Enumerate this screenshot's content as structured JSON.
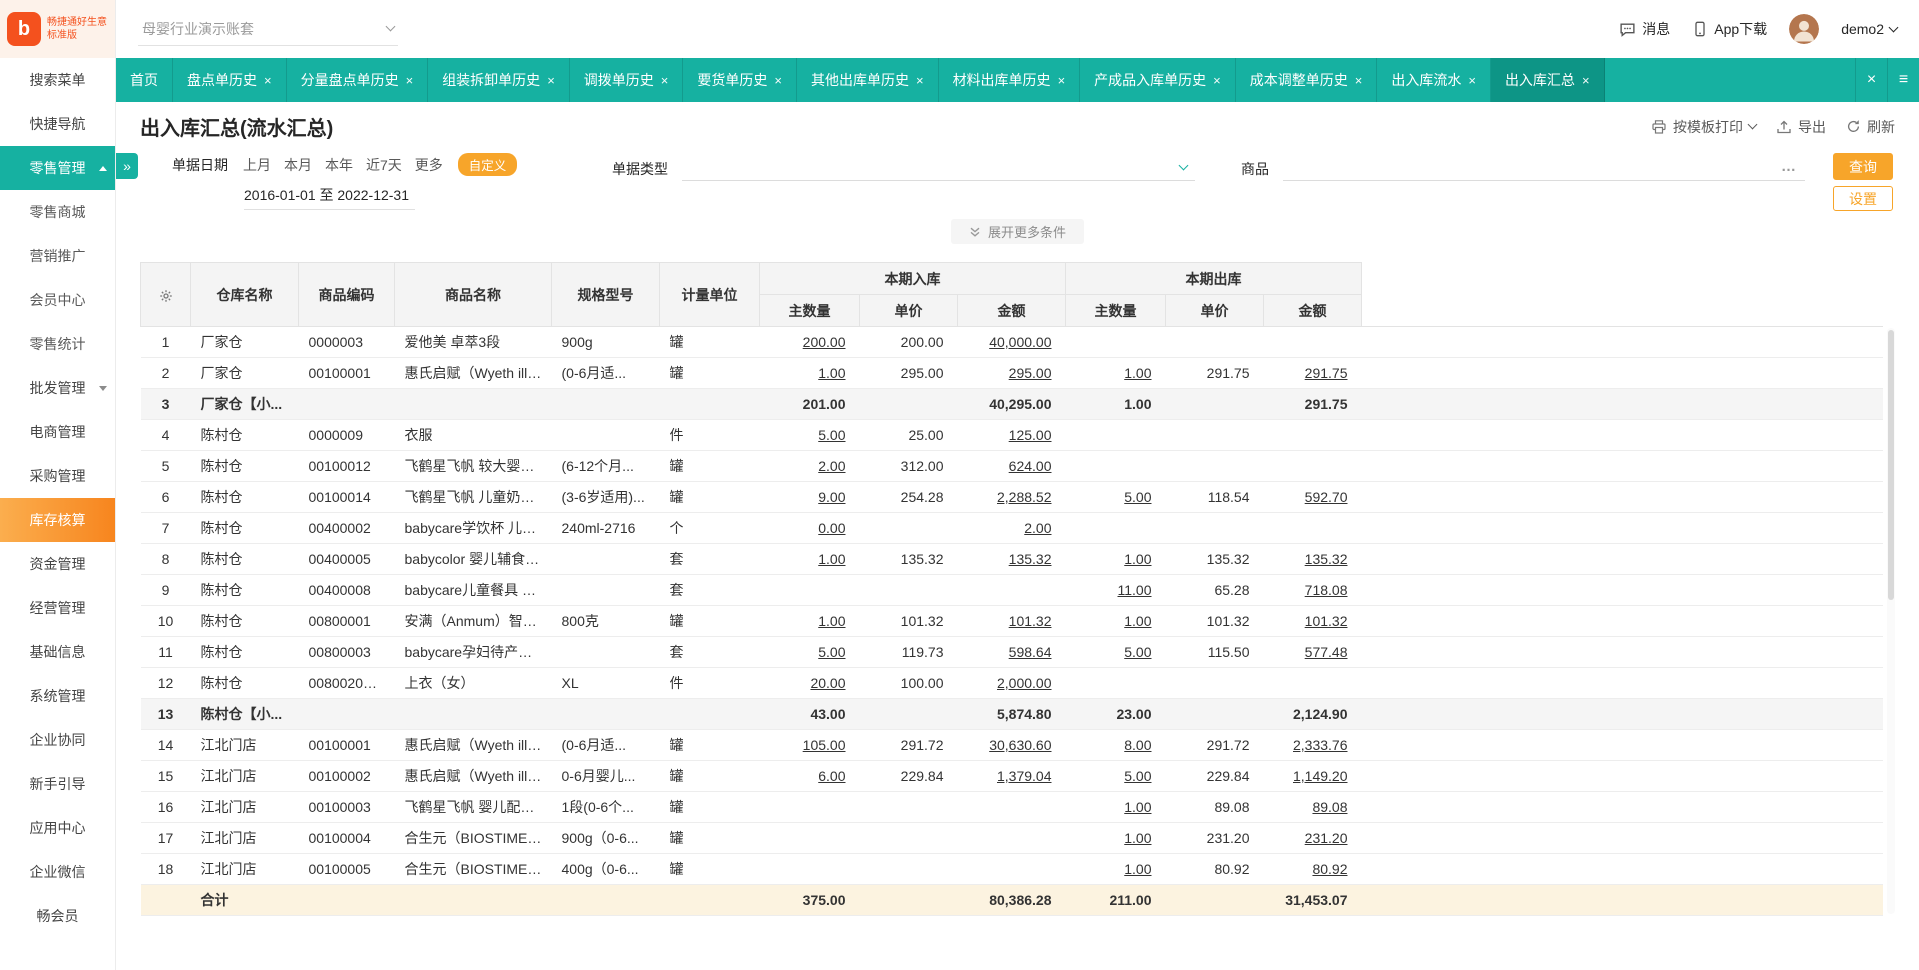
{
  "brand": {
    "name": "畅捷通好生意",
    "edition": "标准版"
  },
  "icons": {
    "close": "×",
    "menu": "≡",
    "collapse": "»",
    "dots": "…"
  },
  "topbar": {
    "account_set": "母婴行业演示账套",
    "messages_label": "消息",
    "app_download_label": "App下载",
    "username": "demo2"
  },
  "sidebar": {
    "items": [
      {
        "label": "搜索菜单",
        "type": "plain"
      },
      {
        "label": "快捷导航",
        "type": "plain"
      },
      {
        "label": "零售管理",
        "type": "group-active",
        "arrow": "up"
      },
      {
        "label": "零售商城",
        "type": "sub"
      },
      {
        "label": "营销推广",
        "type": "sub"
      },
      {
        "label": "会员中心",
        "type": "sub"
      },
      {
        "label": "零售统计",
        "type": "sub"
      },
      {
        "label": "批发管理",
        "type": "plain",
        "arrow": "down"
      },
      {
        "label": "电商管理",
        "type": "plain"
      },
      {
        "label": "采购管理",
        "type": "plain"
      },
      {
        "label": "库存核算",
        "type": "active-orange"
      },
      {
        "label": "资金管理",
        "type": "plain"
      },
      {
        "label": "经营管理",
        "type": "plain"
      },
      {
        "label": "基础信息",
        "type": "plain"
      },
      {
        "label": "系统管理",
        "type": "plain"
      },
      {
        "label": "企业协同",
        "type": "plain"
      },
      {
        "label": "新手引导",
        "type": "plain"
      },
      {
        "label": "应用中心",
        "type": "plain"
      },
      {
        "label": "企业微信",
        "type": "plain"
      },
      {
        "label": "畅会员",
        "type": "plain"
      }
    ]
  },
  "tabs": [
    {
      "label": "首页",
      "closable": false,
      "active": false
    },
    {
      "label": "盘点单历史",
      "closable": true,
      "active": false
    },
    {
      "label": "分量盘点单历史",
      "closable": true,
      "active": false
    },
    {
      "label": "组装拆卸单历史",
      "closable": true,
      "active": false
    },
    {
      "label": "调拨单历史",
      "closable": true,
      "active": false
    },
    {
      "label": "要货单历史",
      "closable": true,
      "active": false
    },
    {
      "label": "其他出库单历史",
      "closable": true,
      "active": false
    },
    {
      "label": "材料出库单历史",
      "closable": true,
      "active": false
    },
    {
      "label": "产成品入库单历史",
      "closable": true,
      "active": false
    },
    {
      "label": "成本调整单历史",
      "closable": true,
      "active": false
    },
    {
      "label": "出入库流水",
      "closable": true,
      "active": false
    },
    {
      "label": "出入库汇总",
      "closable": true,
      "active": true
    }
  ],
  "page": {
    "title": "出入库汇总(流水汇总)",
    "print_label": "按模板打印",
    "export_label": "导出",
    "refresh_label": "刷新"
  },
  "filters": {
    "date_label": "单据日期",
    "date_options": [
      "上月",
      "本月",
      "本年",
      "近7天",
      "更多"
    ],
    "custom_label": "自定义",
    "date_range": "2016-01-01 至 2022-12-31",
    "doc_type_label": "单据类型",
    "product_label": "商品",
    "search_label": "查询",
    "settings_label": "设置",
    "expand_more_label": "展开更多条件"
  },
  "table": {
    "col_headers": {
      "warehouse": "仓库名称",
      "code": "商品编码",
      "name": "商品名称",
      "spec": "规格型号",
      "unit": "计量单位",
      "in_group": "本期入库",
      "out_group": "本期出库",
      "qty": "主数量",
      "price": "单价",
      "amount": "金额"
    },
    "rows": [
      {
        "n": "1",
        "wh": "厂家仓",
        "code": "0000003",
        "name": "爱他美 卓萃3段",
        "spec": "900g",
        "unit": "罐",
        "in_qty": "200.00",
        "in_price": "200.00",
        "in_amt": "40,000.00",
        "out_qty": "",
        "out_price": "",
        "out_amt": ""
      },
      {
        "n": "2",
        "wh": "厂家仓",
        "code": "00100001",
        "name": "惠氏启赋（Wyeth illu...",
        "spec": "(0-6月适...",
        "unit": "罐",
        "in_qty": "1.00",
        "in_price": "295.00",
        "in_amt": "295.00",
        "out_qty": "1.00",
        "out_price": "291.75",
        "out_amt": "291.75"
      },
      {
        "n": "3",
        "type": "subtotal",
        "wh": "厂家仓【小...",
        "in_qty": "201.00",
        "in_amt": "40,295.00",
        "out_qty": "1.00",
        "out_amt": "291.75"
      },
      {
        "n": "4",
        "wh": "陈村仓",
        "code": "0000009",
        "name": "衣服",
        "spec": "",
        "unit": "件",
        "in_qty": "5.00",
        "in_price": "25.00",
        "in_amt": "125.00",
        "out_qty": "",
        "out_price": "",
        "out_amt": ""
      },
      {
        "n": "5",
        "wh": "陈村仓",
        "code": "00100012",
        "name": "飞鹤星飞帆 较大婴儿配...",
        "spec": "(6-12个月...",
        "unit": "罐",
        "in_qty": "2.00",
        "in_price": "312.00",
        "in_amt": "624.00",
        "out_qty": "",
        "out_price": "",
        "out_amt": ""
      },
      {
        "n": "6",
        "wh": "陈村仓",
        "code": "00100014",
        "name": "飞鹤星飞帆 儿童奶粉 4...",
        "spec": "(3-6岁适用)...",
        "unit": "罐",
        "in_qty": "9.00",
        "in_price": "254.28",
        "in_amt": "2,288.52",
        "out_qty": "5.00",
        "out_price": "118.54",
        "out_amt": "592.70"
      },
      {
        "n": "7",
        "wh": "陈村仓",
        "code": "00400002",
        "name": "babycare学饮杯 儿童...",
        "spec": "240ml-2716",
        "unit": "个",
        "in_qty": "0.00",
        "in_price": "",
        "in_amt": "2.00",
        "out_qty": "",
        "out_price": "",
        "out_amt": ""
      },
      {
        "n": "8",
        "wh": "陈村仓",
        "code": "00400005",
        "name": "babycolor 婴儿辅食机...",
        "spec": "",
        "unit": "套",
        "in_qty": "1.00",
        "in_price": "135.32",
        "in_amt": "135.32",
        "out_qty": "1.00",
        "out_price": "135.32",
        "out_amt": "135.32"
      },
      {
        "n": "9",
        "wh": "陈村仓",
        "code": "00400008",
        "name": "babycare儿童餐具 婴...",
        "spec": "",
        "unit": "套",
        "in_qty": "",
        "in_price": "",
        "in_amt": "",
        "out_qty": "11.00",
        "out_price": "65.28",
        "out_amt": "718.08"
      },
      {
        "n": "10",
        "wh": "陈村仓",
        "code": "00800001",
        "name": "安满（Anmum）智孕...",
        "spec": "800克",
        "unit": "罐",
        "in_qty": "1.00",
        "in_price": "101.32",
        "in_amt": "101.32",
        "out_qty": "1.00",
        "out_price": "101.32",
        "out_amt": "101.32"
      },
      {
        "n": "11",
        "wh": "陈村仓",
        "code": "00800003",
        "name": "babycare孕妇待产包 ...",
        "spec": "",
        "unit": "套",
        "in_qty": "5.00",
        "in_price": "119.73",
        "in_amt": "598.64",
        "out_qty": "5.00",
        "out_price": "115.50",
        "out_amt": "577.48"
      },
      {
        "n": "12",
        "wh": "陈村仓",
        "code": "008002000...",
        "name": "上衣（女）",
        "spec": "XL",
        "unit": "件",
        "in_qty": "20.00",
        "in_price": "100.00",
        "in_amt": "2,000.00",
        "out_qty": "",
        "out_price": "",
        "out_amt": ""
      },
      {
        "n": "13",
        "type": "subtotal",
        "wh": "陈村仓【小...",
        "in_qty": "43.00",
        "in_amt": "5,874.80",
        "out_qty": "23.00",
        "out_amt": "2,124.90"
      },
      {
        "n": "14",
        "wh": "江北门店",
        "code": "00100001",
        "name": "惠氏启赋（Wyeth illu...",
        "spec": "(0-6月适...",
        "unit": "罐",
        "in_qty": "105.00",
        "in_price": "291.72",
        "in_amt": "30,630.60",
        "out_qty": "8.00",
        "out_price": "291.72",
        "out_amt": "2,333.76"
      },
      {
        "n": "15",
        "wh": "江北门店",
        "code": "00100002",
        "name": "惠氏启赋（Wyeth illu...",
        "spec": "0-6月婴儿...",
        "unit": "罐",
        "in_qty": "6.00",
        "in_price": "229.84",
        "in_amt": "1,379.04",
        "out_qty": "5.00",
        "out_price": "229.84",
        "out_amt": "1,149.20"
      },
      {
        "n": "16",
        "wh": "江北门店",
        "code": "00100003",
        "name": "飞鹤星飞帆 婴儿配方奶...",
        "spec": "1段(0-6个...",
        "unit": "罐",
        "in_qty": "",
        "in_price": "",
        "in_amt": "",
        "out_qty": "1.00",
        "out_price": "89.08",
        "out_amt": "89.08"
      },
      {
        "n": "17",
        "wh": "江北门店",
        "code": "00100004",
        "name": "合生元（BIOSTIME）...",
        "spec": "900g（0-6...",
        "unit": "罐",
        "in_qty": "",
        "in_price": "",
        "in_amt": "",
        "out_qty": "1.00",
        "out_price": "231.20",
        "out_amt": "231.20"
      },
      {
        "n": "18",
        "wh": "江北门店",
        "code": "00100005",
        "name": "合生元（BIOSTIME）...",
        "spec": "400g（0-6...",
        "unit": "罐",
        "in_qty": "",
        "in_price": "",
        "in_amt": "",
        "out_qty": "1.00",
        "out_price": "80.92",
        "out_amt": "80.92"
      }
    ],
    "total": {
      "label": "合计",
      "in_qty": "375.00",
      "in_amt": "80,386.28",
      "out_qty": "211.00",
      "out_amt": "31,453.07"
    }
  }
}
